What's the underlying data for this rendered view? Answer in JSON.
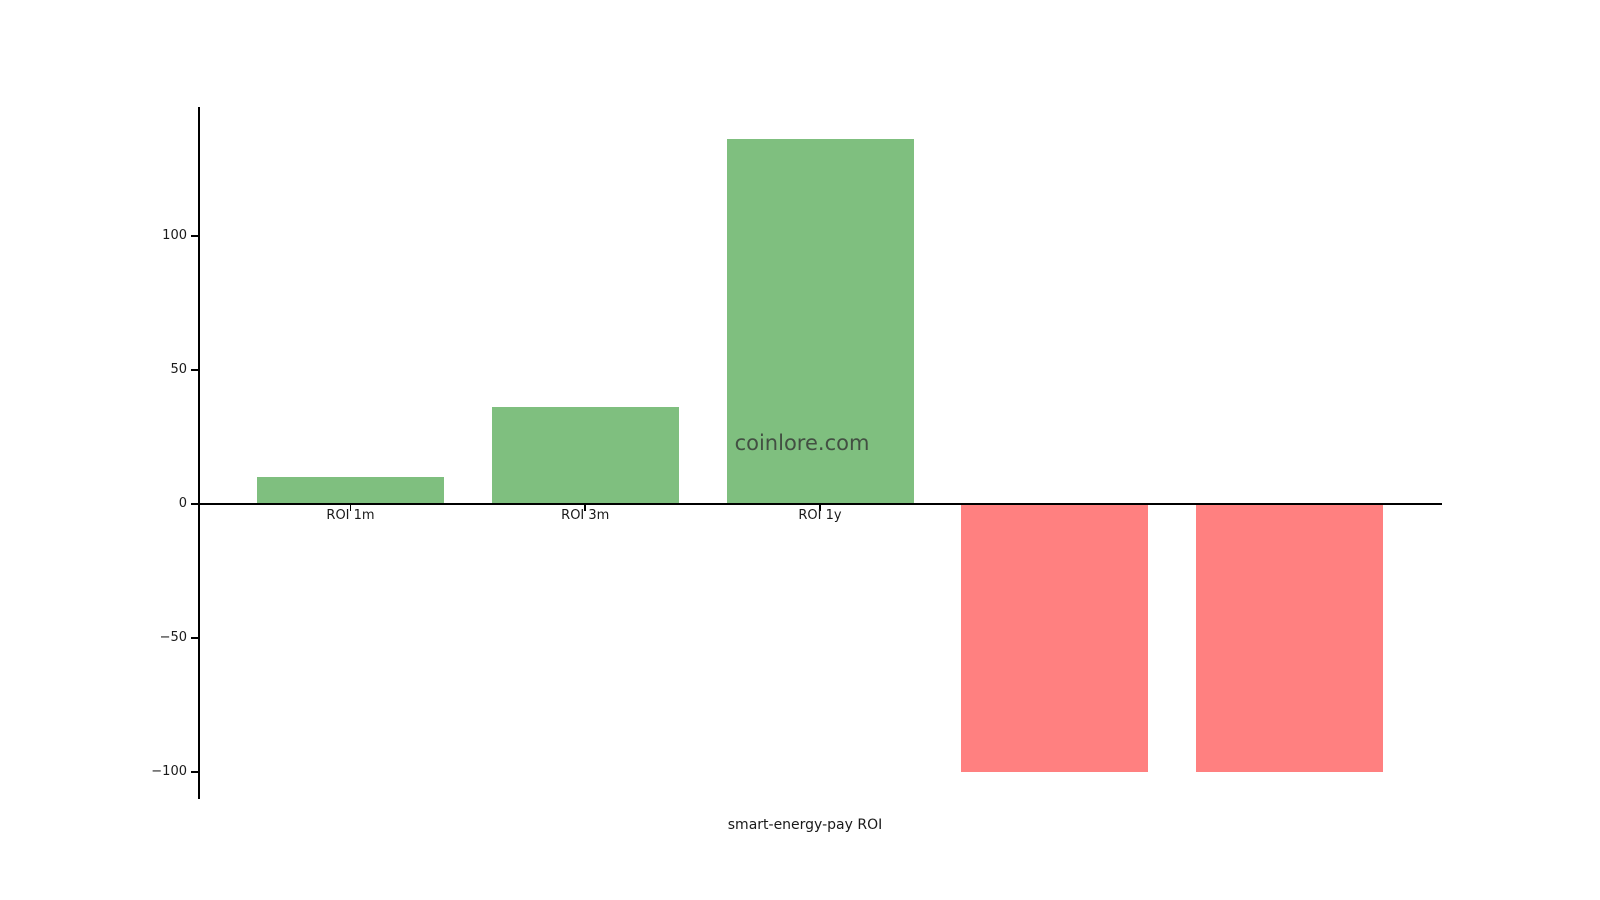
{
  "chart_data": {
    "type": "bar",
    "title": "smart-energy-pay ROI",
    "watermark": "coinlore.com",
    "categories": [
      "ROI 1m",
      "ROI 3m",
      "ROI 1y",
      "",
      ""
    ],
    "values": [
      10,
      36,
      136,
      -100,
      -100
    ],
    "bar_colors": [
      "#7fbf7f",
      "#7fbf7f",
      "#7fbf7f",
      "#ff8080",
      "#ff8080"
    ],
    "positive_color": "#7fbf7f",
    "negative_color": "#ff8080",
    "yticks": [
      100,
      50,
      0,
      -50,
      -100
    ],
    "ylim": [
      -110,
      148
    ],
    "xlabel": "",
    "ylabel": "",
    "grid": false,
    "legend": "none",
    "axis_color": "#000000",
    "text_color": "#1a1a1a"
  }
}
